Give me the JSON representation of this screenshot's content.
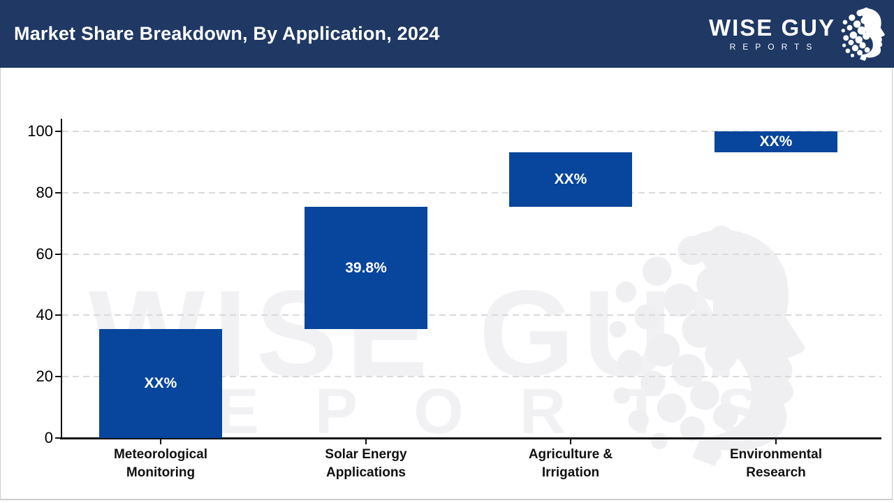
{
  "header": {
    "title": "Market Share Breakdown, By Application, 2024",
    "background": "#1F3864",
    "logo": {
      "line1": "WISE GUY",
      "line2": "REPORTS"
    }
  },
  "watermark": {
    "line1": "WISE GUY",
    "line2": "REPORTS"
  },
  "chart_data": {
    "type": "bar",
    "subtype": "waterfall",
    "title": "Market Share Breakdown, By Application, 2024",
    "categories": [
      [
        "Meteorological",
        "Monitoring"
      ],
      [
        "Solar Energy",
        "Applications"
      ],
      [
        "Agriculture &",
        "Irrigation"
      ],
      [
        "Environmental",
        "Research"
      ]
    ],
    "segments": [
      {
        "category": "Meteorological Monitoring",
        "start": 0,
        "end": 35.5,
        "label": "XX%"
      },
      {
        "category": "Solar Energy Applications",
        "start": 35.5,
        "end": 75.3,
        "label": "39.8%"
      },
      {
        "category": "Agriculture & Irrigation",
        "start": 75.3,
        "end": 93.1,
        "label": "XX%"
      },
      {
        "category": "Environmental Research",
        "start": 93.1,
        "end": 100,
        "label": "XX%"
      }
    ],
    "xlabel": "",
    "ylabel": "",
    "ylim": [
      0,
      100
    ],
    "yticks": [
      0,
      20,
      40,
      60,
      80,
      100
    ],
    "grid": "horizontal-dashed",
    "legend": "none",
    "bar_color": "#08459C",
    "gridline_color": "#d9d9d9",
    "axis_color": "#111111"
  }
}
